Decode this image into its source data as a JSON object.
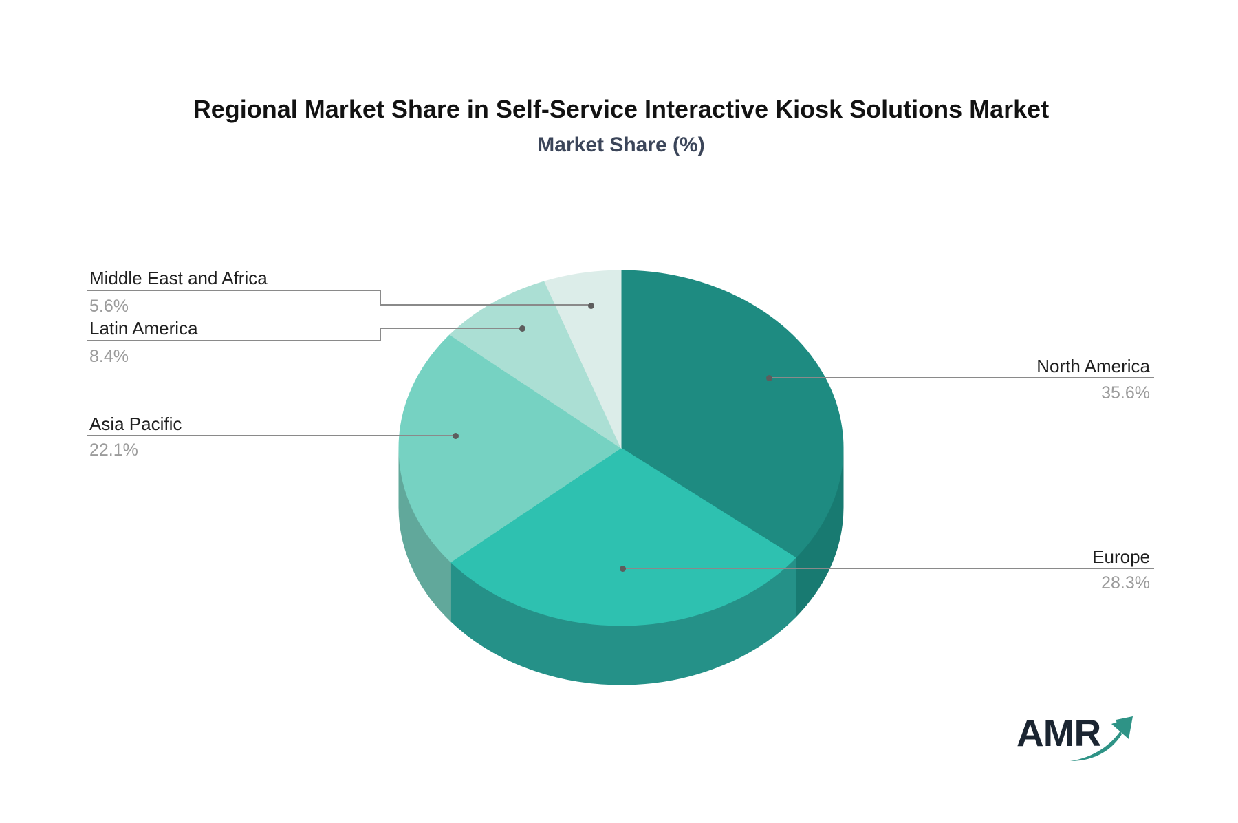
{
  "header": {
    "title": "Regional Market Share in Self-Service Interactive Kiosk Solutions Market",
    "subtitle": "Market Share (%)"
  },
  "chart_data": {
    "type": "pie",
    "style": "3d-pie",
    "title": "Regional Market Share in Self-Service Interactive Kiosk Solutions Market",
    "subtitle": "Market Share (%)",
    "unit": "%",
    "direction": "clockwise",
    "start_angle_deg": 0,
    "legend_position": "none",
    "categories": [
      "North America",
      "Europe",
      "Asia Pacific",
      "Latin America",
      "Middle East and Africa"
    ],
    "values": [
      35.6,
      28.3,
      22.1,
      8.4,
      5.6
    ],
    "slice_colors": [
      "#1E8B81",
      "#2EC1B0",
      "#76D2C2",
      "#ABDFD4",
      "#DCEDE9"
    ],
    "slice_side_colors": [
      "#187A71",
      "#259188",
      "#61A89B",
      "#8FC6BA",
      "#B9D8D1"
    ],
    "labels": [
      {
        "name": "North America",
        "value_text": "35.6%",
        "side": "right"
      },
      {
        "name": "Europe",
        "value_text": "28.3%",
        "side": "right"
      },
      {
        "name": "Asia Pacific",
        "value_text": "22.1%",
        "side": "left"
      },
      {
        "name": "Latin America",
        "value_text": "8.4%",
        "side": "left"
      },
      {
        "name": "Middle East and Africa",
        "value_text": "5.6%",
        "side": "left"
      }
    ]
  },
  "logo": {
    "text": "AMR",
    "arrow_icon": "trending-up-arrow",
    "text_color": "#1b2531",
    "arrow_color": "#2E9386"
  },
  "colors": {
    "background": "#FFFFFF",
    "leader_line": "#8A8A8A",
    "leader_dot": "#5D5D5D",
    "label_name_text": "#1F1F1F",
    "label_value_text": "#9B9B9B",
    "title_text": "#121212",
    "subtitle_text": "#3B4559"
  }
}
